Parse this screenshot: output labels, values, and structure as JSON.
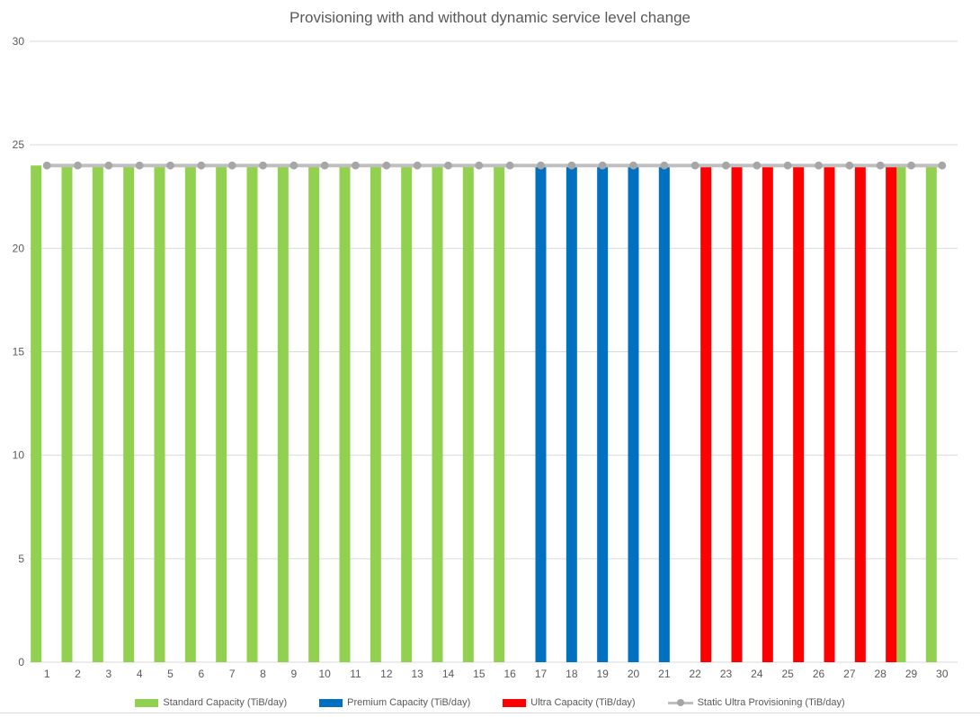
{
  "page": {
    "background": "#FFFFFF",
    "frame_border_color": "#D9D9D9"
  },
  "chart_data": {
    "type": "bar",
    "title": "Provisioning with and without dynamic service level change",
    "title_color": "#595959",
    "xlabel": "",
    "ylabel": "",
    "categories": [
      1,
      2,
      3,
      4,
      5,
      6,
      7,
      8,
      9,
      10,
      11,
      12,
      13,
      14,
      15,
      16,
      17,
      18,
      19,
      20,
      21,
      22,
      23,
      24,
      25,
      26,
      27,
      28,
      29,
      30
    ],
    "series": [
      {
        "name": "Standard Capacity (TiB/day)",
        "kind": "bar",
        "color": "#92D050",
        "values": [
          24,
          24,
          24,
          24,
          24,
          24,
          24,
          24,
          24,
          24,
          24,
          24,
          24,
          24,
          24,
          24,
          null,
          null,
          null,
          null,
          null,
          null,
          null,
          null,
          null,
          null,
          null,
          null,
          24,
          24
        ]
      },
      {
        "name": "Premium Capacity (TiB/day)",
        "kind": "bar",
        "color": "#0070C0",
        "values": [
          null,
          null,
          null,
          null,
          null,
          null,
          null,
          null,
          null,
          null,
          null,
          null,
          null,
          null,
          null,
          null,
          24,
          24,
          24,
          24,
          24,
          null,
          null,
          null,
          null,
          null,
          null,
          null,
          null,
          null
        ]
      },
      {
        "name": "Ultra Capacity (TiB/day)",
        "kind": "bar",
        "color": "#FF0000",
        "values": [
          null,
          null,
          null,
          null,
          null,
          null,
          null,
          null,
          null,
          null,
          null,
          null,
          null,
          null,
          null,
          null,
          null,
          null,
          null,
          null,
          null,
          24,
          24,
          24,
          24,
          24,
          24,
          24,
          null,
          null
        ]
      },
      {
        "name": "Static Ultra Provisioning (TiB/day)",
        "kind": "line",
        "color": "#BFBFBF",
        "marker_color": "#A6A6A6",
        "values": [
          24,
          24,
          24,
          24,
          24,
          24,
          24,
          24,
          24,
          24,
          24,
          24,
          24,
          24,
          24,
          24,
          24,
          24,
          24,
          24,
          24,
          24,
          24,
          24,
          24,
          24,
          24,
          24,
          24,
          24
        ]
      }
    ],
    "ylim": [
      0,
      30
    ],
    "ytick_interval": 5,
    "yticks": [
      0,
      5,
      10,
      15,
      20,
      25,
      30
    ],
    "grid": true,
    "gridline_color": "#D9D9D9",
    "axis_line_color": "#D9D9D9",
    "axis_label_color": "#595959",
    "legend_position": "bottom"
  }
}
